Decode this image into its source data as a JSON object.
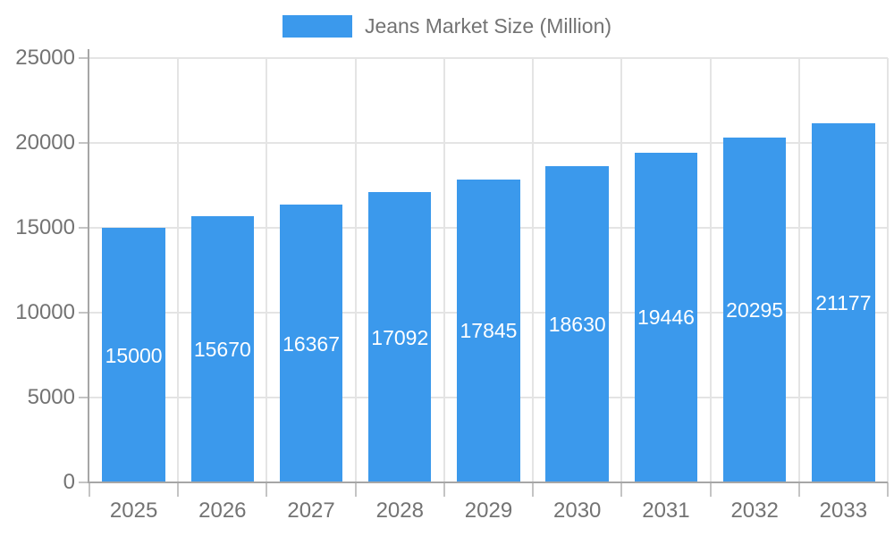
{
  "chart_data": {
    "type": "bar",
    "title": "Jeans Market Size (Million)",
    "legend_label": "Jeans Market Size (Million)",
    "legend_position": "top-center",
    "categories": [
      "2025",
      "2026",
      "2027",
      "2028",
      "2029",
      "2030",
      "2031",
      "2032",
      "2033"
    ],
    "series": [
      {
        "name": "Jeans Market Size (Million)",
        "values": [
          15000,
          15670,
          16367,
          17092,
          17845,
          18630,
          19446,
          20295,
          21177
        ]
      }
    ],
    "value_labels": [
      "15000",
      "15670",
      "16367",
      "17092",
      "17845",
      "18630",
      "19446",
      "20295",
      "21177"
    ],
    "value_label_position": "inside-middle",
    "xlabel": "",
    "ylabel": "",
    "ylim": [
      0,
      25000
    ],
    "ytick_step": 5000,
    "yticks": [
      "0",
      "5000",
      "10000",
      "15000",
      "20000",
      "25000"
    ],
    "grid": "on",
    "colors": {
      "bar": "#3B99EC",
      "grid": "#E4E4E4",
      "tick": "#C4C4C4",
      "axis": "#A6A6A6",
      "axis_label": "#737373",
      "value_label": "#FFFFFF",
      "background": "#FFFFFF"
    }
  }
}
